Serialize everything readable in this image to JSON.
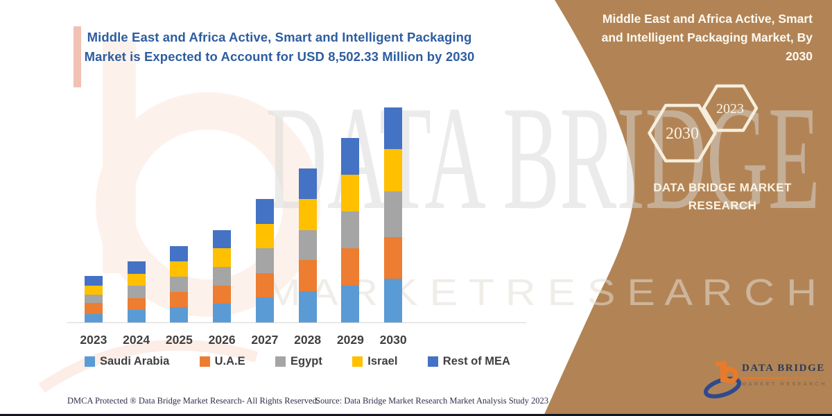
{
  "page": {
    "title": "Middle East and Africa Active, Smart and Intelligent Packaging Market is Expected to Account for USD 8,502.33 Million by 2030",
    "footer_left": "DMCA Protected ® Data Bridge Market Research- All Rights Reserved.",
    "footer_source": "Source: Data Bridge Market Research Market Analysis Study 2023"
  },
  "right_panel": {
    "heading": "Middle East and Africa Active, Smart and Intelligent Packaging Market, By 2030",
    "hexagon_large_label": "2030",
    "hexagon_small_label": "2023",
    "brand_line1": "DATA BRIDGE MARKET",
    "brand_line2": "RESEARCH",
    "background_color": "#b28455"
  },
  "logo": {
    "name": "DATA BRIDGE",
    "subtext": "MARKET RESEARCH"
  },
  "watermark": {
    "line1": "DATA BRIDGE",
    "line2": "M A R K E T   R E S E A R C H"
  },
  "colors": {
    "title_blue": "#2d5da0",
    "panel_brown": "#b28455",
    "axis_gray": "#d6d6d6",
    "label_gray": "#3f3f3f"
  },
  "chart_data": {
    "type": "bar",
    "stacked": true,
    "title": "Middle East and Africa Active, Smart and Intelligent Packaging Market, USD Million",
    "unit": "USD Million",
    "categories": [
      "2023",
      "2024",
      "2025",
      "2026",
      "2027",
      "2028",
      "2029",
      "2030"
    ],
    "series": [
      {
        "name": "Saudi Arabia",
        "color": "#5B9BD5",
        "values": [
          320,
          483,
          602,
          730,
          976,
          1231,
          1459,
          1736
        ]
      },
      {
        "name": "U.A.E",
        "color": "#ED7D31",
        "values": [
          457,
          483,
          602,
          730,
          976,
          1231,
          1459,
          1645
        ]
      },
      {
        "name": "Egypt",
        "color": "#A5A5A5",
        "values": [
          320,
          483,
          602,
          730,
          976,
          1185,
          1459,
          1783
        ]
      },
      {
        "name": "Israel",
        "color": "#FFC000",
        "values": [
          364,
          483,
          602,
          730,
          976,
          1231,
          1459,
          1692
        ]
      },
      {
        "name": "Rest of MEA",
        "color": "#4472C4",
        "values": [
          364,
          484,
          602,
          730,
          976,
          1185,
          1459,
          1646
        ]
      }
    ],
    "totals_by_year": [
      1825,
      2416,
      3010,
      3650,
      4880,
      6063,
      7295,
      8502.33
    ],
    "values_note": "Segment values estimated from bar heights; only labeled figure is 2030 total USD 8,502.33 Million",
    "xlabel": "",
    "ylabel": "",
    "ylim": [
      0,
      8700
    ],
    "grid": false,
    "y_axis_shown": false,
    "legend_position": "bottom"
  }
}
